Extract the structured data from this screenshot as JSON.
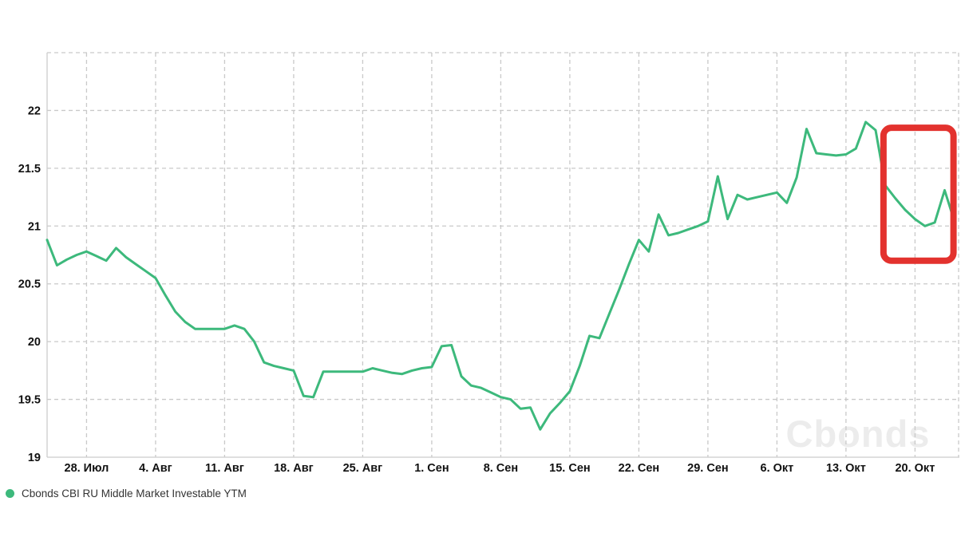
{
  "chart_data": {
    "type": "line",
    "title": "",
    "series": [
      {
        "name": "Cbonds CBI RU Middle Market Investable YTM",
        "color": "#3db97c",
        "values": [
          20.88,
          20.66,
          20.71,
          20.75,
          20.78,
          20.74,
          20.7,
          20.81,
          20.73,
          20.67,
          20.61,
          20.55,
          20.4,
          20.26,
          20.17,
          20.11,
          20.11,
          20.11,
          20.11,
          20.14,
          20.11,
          20.0,
          19.82,
          19.79,
          19.77,
          19.75,
          19.53,
          19.52,
          19.74,
          19.74,
          19.74,
          19.74,
          19.74,
          19.77,
          19.75,
          19.73,
          19.72,
          19.75,
          19.77,
          19.78,
          19.96,
          19.97,
          19.7,
          19.62,
          19.6,
          19.56,
          19.52,
          19.5,
          19.42,
          19.43,
          19.24,
          19.38,
          19.47,
          19.57,
          19.79,
          20.05,
          20.03,
          20.24,
          20.45,
          20.67,
          20.88,
          20.78,
          21.1,
          20.92,
          20.94,
          20.97,
          21.0,
          21.04,
          21.43,
          21.06,
          21.27,
          21.23,
          21.25,
          21.27,
          21.29,
          21.2,
          21.42,
          21.84,
          21.63,
          21.62,
          21.61,
          21.62,
          21.67,
          21.9,
          21.83,
          21.35,
          21.24,
          21.14,
          21.06,
          21.0,
          21.03,
          21.31,
          21.04
        ]
      }
    ],
    "x_axis": {
      "tick_labels": [
        "28. Июл",
        "4. Авг",
        "11. Авг",
        "18. Авг",
        "25. Авг",
        "1. Сен",
        "8. Сен",
        "15. Сен",
        "22. Сен",
        "29. Сен",
        "6. Окт",
        "13. Окт",
        "20. Окт"
      ],
      "first_tick_point_index": 4,
      "points_per_tick": 7
    },
    "y_axis": {
      "tick_labels": [
        "19",
        "19.5",
        "20",
        "20.5",
        "21",
        "21.5",
        "22"
      ],
      "tick_values": [
        19,
        19.5,
        20,
        20.5,
        21,
        21.5,
        22
      ],
      "grid_values": [
        19.5,
        20,
        20.5,
        21,
        21.5,
        22,
        22.5
      ],
      "range": [
        19,
        22.5
      ]
    },
    "grid": {
      "style": "dashed",
      "color": "#c9c9c9",
      "axis_color": "#cccccc"
    },
    "annotation_rect": {
      "color": "#e3322e",
      "point_index_from": 84.8,
      "point_index_to": 91.9,
      "value_from": 20.7,
      "value_to": 21.85,
      "border_width": 8,
      "corner_radius": 10
    },
    "legend_position": "bottom-left"
  },
  "watermark": {
    "text": "Cbonds",
    "color": "#ececec"
  },
  "legend": {
    "marker_color": "#3db97c"
  }
}
